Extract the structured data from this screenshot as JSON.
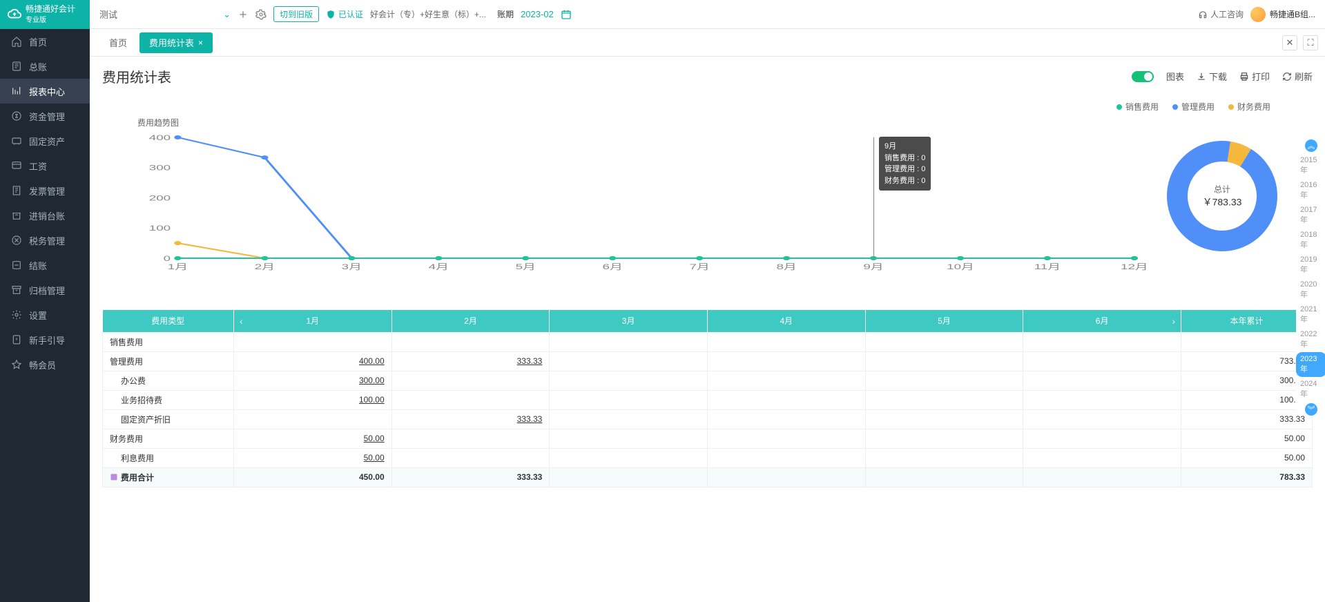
{
  "brand": {
    "name": "畅捷通好会计",
    "edition": "专业版"
  },
  "sidebar": {
    "items": [
      {
        "label": "首页",
        "icon": "home"
      },
      {
        "label": "总账",
        "icon": "ledger"
      },
      {
        "label": "报表中心",
        "icon": "report",
        "active": true
      },
      {
        "label": "资金管理",
        "icon": "fund"
      },
      {
        "label": "固定资产",
        "icon": "asset"
      },
      {
        "label": "工资",
        "icon": "salary"
      },
      {
        "label": "发票管理",
        "icon": "invoice"
      },
      {
        "label": "进销台账",
        "icon": "stock"
      },
      {
        "label": "税务管理",
        "icon": "tax"
      },
      {
        "label": "结账",
        "icon": "close"
      },
      {
        "label": "归档管理",
        "icon": "archive"
      },
      {
        "label": "设置",
        "icon": "settings"
      },
      {
        "label": "新手引导",
        "icon": "guide"
      },
      {
        "label": "畅会员",
        "icon": "vip"
      }
    ]
  },
  "topbar": {
    "company": "测试",
    "switch_old": "切到旧版",
    "verified": "已认证",
    "plan": "好会计（专）+好生意（标）+...",
    "period_label": "账期",
    "period_value": "2023-02",
    "service": "人工咨询",
    "user": "畅捷通B组..."
  },
  "tabs": [
    {
      "label": "首页",
      "active": false,
      "closable": false
    },
    {
      "label": "费用统计表",
      "active": true,
      "closable": true
    }
  ],
  "page": {
    "title": "费用统计表",
    "tools": {
      "chart": "图表",
      "download": "下载",
      "print": "打印",
      "refresh": "刷新"
    }
  },
  "chart": {
    "title": "费用趋势图",
    "legend": [
      {
        "label": "销售费用",
        "color": "#1fc49b"
      },
      {
        "label": "管理费用",
        "color": "#4f8ff7"
      },
      {
        "label": "财务费用",
        "color": "#f5b83d"
      }
    ],
    "x_labels": [
      "1月",
      "2月",
      "3月",
      "4月",
      "5月",
      "6月",
      "7月",
      "8月",
      "9月",
      "10月",
      "11月",
      "12月"
    ],
    "y_ticks": [
      0,
      100,
      200,
      300,
      400
    ],
    "ylim": [
      0,
      400
    ],
    "series": {
      "sales": [
        0,
        0,
        0,
        0,
        0,
        0,
        0,
        0,
        0,
        0,
        0,
        0
      ],
      "mgmt": [
        400,
        333.33,
        0,
        0,
        0,
        0,
        0,
        0,
        0,
        0,
        0,
        0
      ],
      "finance": [
        50,
        0,
        0,
        0,
        0,
        0,
        0,
        0,
        0,
        0,
        0,
        0
      ]
    },
    "hover_index": 8,
    "tooltip": {
      "title": "9月",
      "lines": [
        "销售费用 : 0",
        "管理费用 : 0",
        "财务费用 : 0"
      ]
    }
  },
  "donut": {
    "center_label": "总计",
    "center_value": "￥783.33",
    "slices": [
      {
        "label": "管理费用",
        "value": 733.33,
        "color": "#4f8ff7"
      },
      {
        "label": "财务费用",
        "value": 50.0,
        "color": "#f5b83d"
      }
    ],
    "total": 783.33
  },
  "years": {
    "list": [
      "2015年",
      "2016年",
      "2017年",
      "2018年",
      "2019年",
      "2020年",
      "2021年",
      "2022年",
      "2023年",
      "2024年"
    ],
    "active": "2023年"
  },
  "table": {
    "columns": [
      "费用类型",
      "1月",
      "2月",
      "3月",
      "4月",
      "5月",
      "6月",
      "本年累计"
    ],
    "rows": [
      {
        "label": "销售费用",
        "indent": 0,
        "cells": [
          "",
          "",
          "",
          "",
          "",
          "",
          ""
        ],
        "underline": false
      },
      {
        "label": "管理费用",
        "indent": 0,
        "cells": [
          "400.00",
          "333.33",
          "",
          "",
          "",
          "",
          "733.33"
        ],
        "underline": true
      },
      {
        "label": "办公费",
        "indent": 1,
        "cells": [
          "300.00",
          "",
          "",
          "",
          "",
          "",
          "300.00"
        ],
        "underline": true
      },
      {
        "label": "业务招待费",
        "indent": 1,
        "cells": [
          "100.00",
          "",
          "",
          "",
          "",
          "",
          "100.00"
        ],
        "underline": true
      },
      {
        "label": "固定资产折旧",
        "indent": 1,
        "cells": [
          "",
          "333.33",
          "",
          "",
          "",
          "",
          "333.33"
        ],
        "underline": true
      },
      {
        "label": "财务费用",
        "indent": 0,
        "cells": [
          "50.00",
          "",
          "",
          "",
          "",
          "",
          "50.00"
        ],
        "underline": true
      },
      {
        "label": "利息费用",
        "indent": 1,
        "cells": [
          "50.00",
          "",
          "",
          "",
          "",
          "",
          "50.00"
        ],
        "underline": true
      }
    ],
    "sum": {
      "label": "费用合计",
      "cells": [
        "450.00",
        "333.33",
        "",
        "",
        "",
        "",
        "783.33"
      ]
    }
  }
}
